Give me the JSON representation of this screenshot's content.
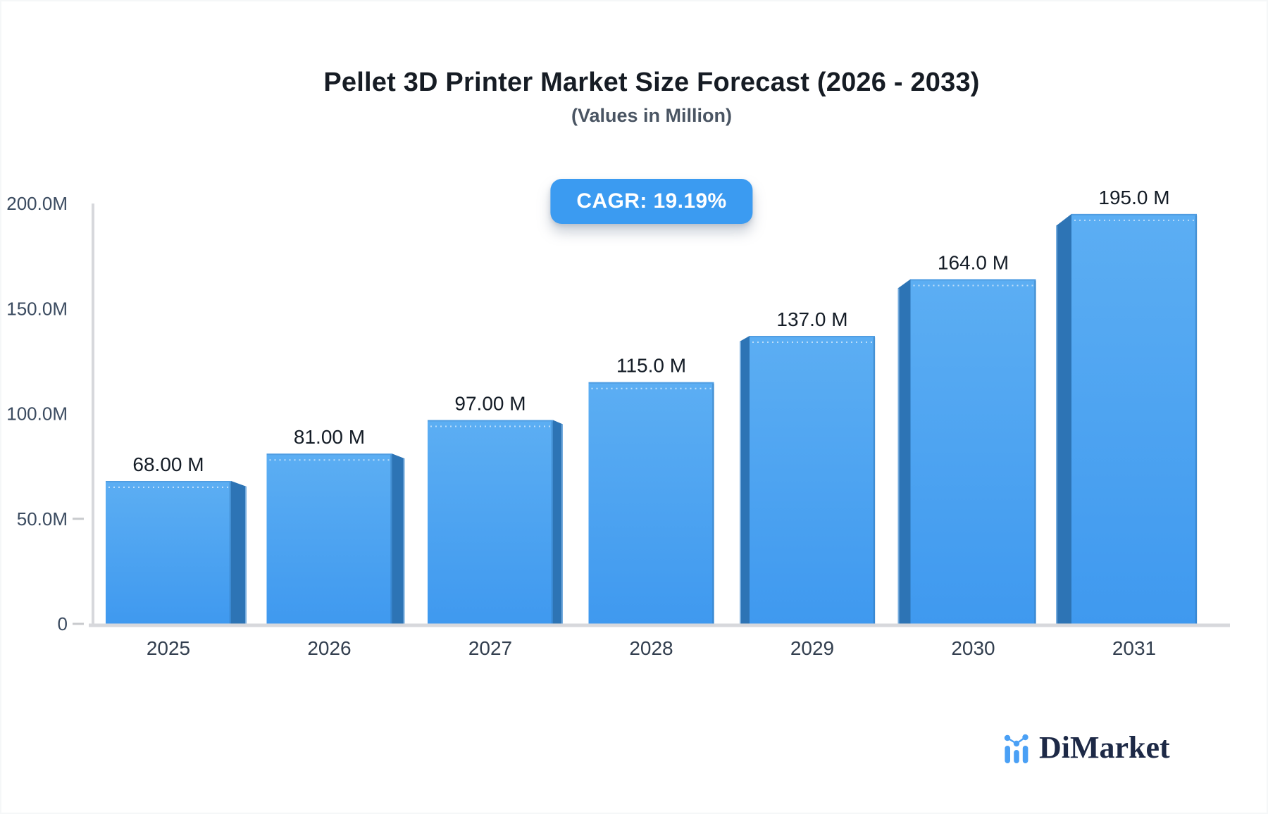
{
  "header": {
    "title": "Pellet 3D Printer Market Size Forecast (2026 - 2033)",
    "subtitle": "(Values in Million)",
    "cagr_label": "CAGR: 19.19%"
  },
  "footer": {
    "brand": "DiMarket",
    "logo_icon": "mini-bar-chart-icon"
  },
  "colors": {
    "accent": "#3b9bf1",
    "bar_face_top": "#5caef3",
    "bar_face_bottom": "#3f99ef",
    "bar_side": "#2d74b5",
    "bar_side_edge": "#7eb3e3",
    "bar_top_edge": "#4e9adf",
    "axis": "#d7d8dc",
    "tick_dash": "#c8cacd",
    "tick_label": "#3b4b60",
    "year_label": "#333f4f",
    "value_label": "#141c26",
    "logo_text": "#1d2946",
    "logo_icon_blue": "#4aa0f5"
  },
  "chart_data": {
    "type": "bar",
    "title": "Pellet 3D Printer Market Size Forecast (2026 - 2033)",
    "subtitle": "(Values in Million)",
    "cagr": "19.19%",
    "categories": [
      "2025",
      "2026",
      "2027",
      "2028",
      "2029",
      "2030",
      "2031"
    ],
    "values": [
      68,
      81,
      97,
      115,
      137,
      164,
      195
    ],
    "value_labels": [
      "68.00 M",
      "81.00 M",
      "97.00 M",
      "115.0 M",
      "137.0 M",
      "164.0 M",
      "195.0 M"
    ],
    "xlabel": "",
    "ylabel": "",
    "ylim": [
      0,
      200
    ],
    "y_ticks": [
      {
        "label": "200.0M",
        "value": 200,
        "dash": false
      },
      {
        "label": "150.0M",
        "value": 150,
        "dash": false
      },
      {
        "label": "100.0M",
        "value": 100,
        "dash": false
      },
      {
        "label": "50.0M",
        "value": 50,
        "dash": true
      },
      {
        "label": "0",
        "value": 0,
        "dash": true
      }
    ],
    "grid": false,
    "legend": "none",
    "style": "3d-perspective-bars"
  }
}
